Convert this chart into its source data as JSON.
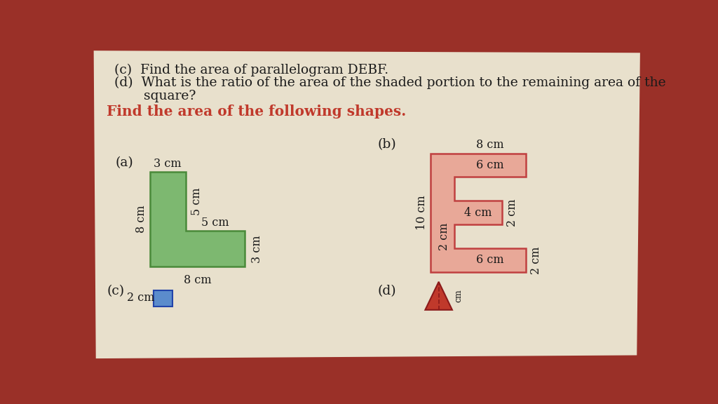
{
  "bg_color": "#b8473a",
  "paper_color": "#e8e0cc",
  "paper_inner": "#ddd5bc",
  "title_c": "(c)  Find the area of parallelogram DEBF.",
  "title_d_1": "(d)  What is the ratio of the area of the shaded portion to the remaining area of the",
  "title_d_2": "       square?",
  "subtitle": "Find the area of the following shapes.",
  "subtitle_color": "#c0392b",
  "text_color": "#1a1a1a",
  "label_color": "#1a1a1a",
  "shape_a_color": "#7db870",
  "shape_a_edge": "#4a8a3a",
  "shape_b_color": "#e8a898",
  "shape_b_edge": "#c04040",
  "tri_color": "#c0392b",
  "tri_edge": "#8b1a1a",
  "blue_rect_color": "#5b8ccc",
  "blue_rect_edge": "#2244aa",
  "scale": 22
}
